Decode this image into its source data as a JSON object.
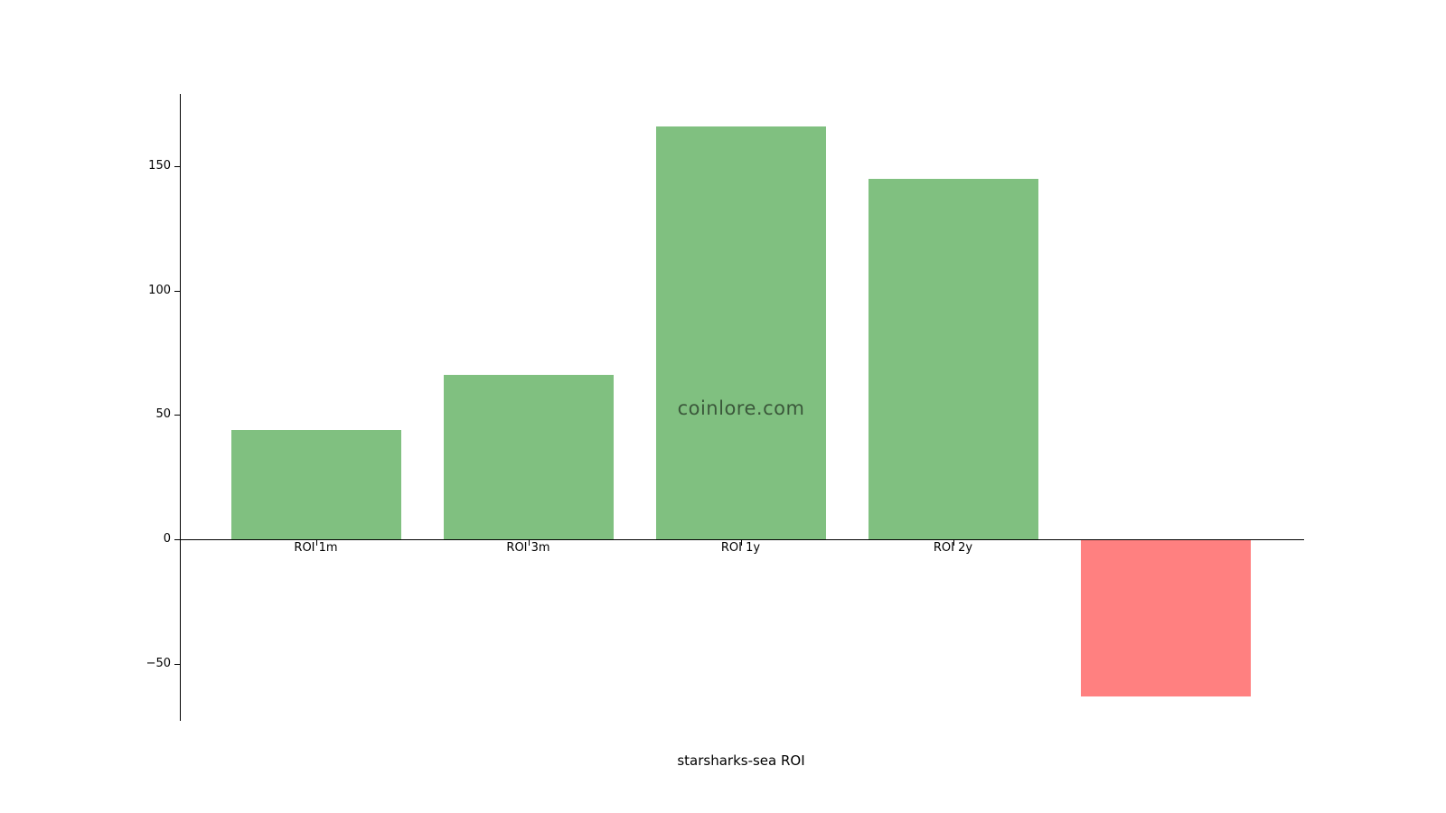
{
  "page": {
    "background": "#ffffff"
  },
  "watermark": {
    "text": "coinlore.com"
  },
  "chart_data": {
    "type": "bar",
    "title": "starsharks-sea ROI",
    "xlabel": "",
    "ylabel": "",
    "categories": [
      "ROI 1m",
      "ROI 3m",
      "ROI 1y",
      "ROI 2y",
      ""
    ],
    "values": [
      44,
      66,
      166,
      145,
      -63
    ],
    "ylim": [
      -73,
      179
    ],
    "yticks": [
      150,
      100,
      50,
      0,
      -50
    ],
    "ytick_labels": [
      "150",
      "100",
      "50",
      "0",
      "−50"
    ],
    "grid": false,
    "legend": null,
    "colors": {
      "positive": "#80c080",
      "negative": "#ff8080",
      "axis": "#000000",
      "text": "#000000"
    }
  }
}
